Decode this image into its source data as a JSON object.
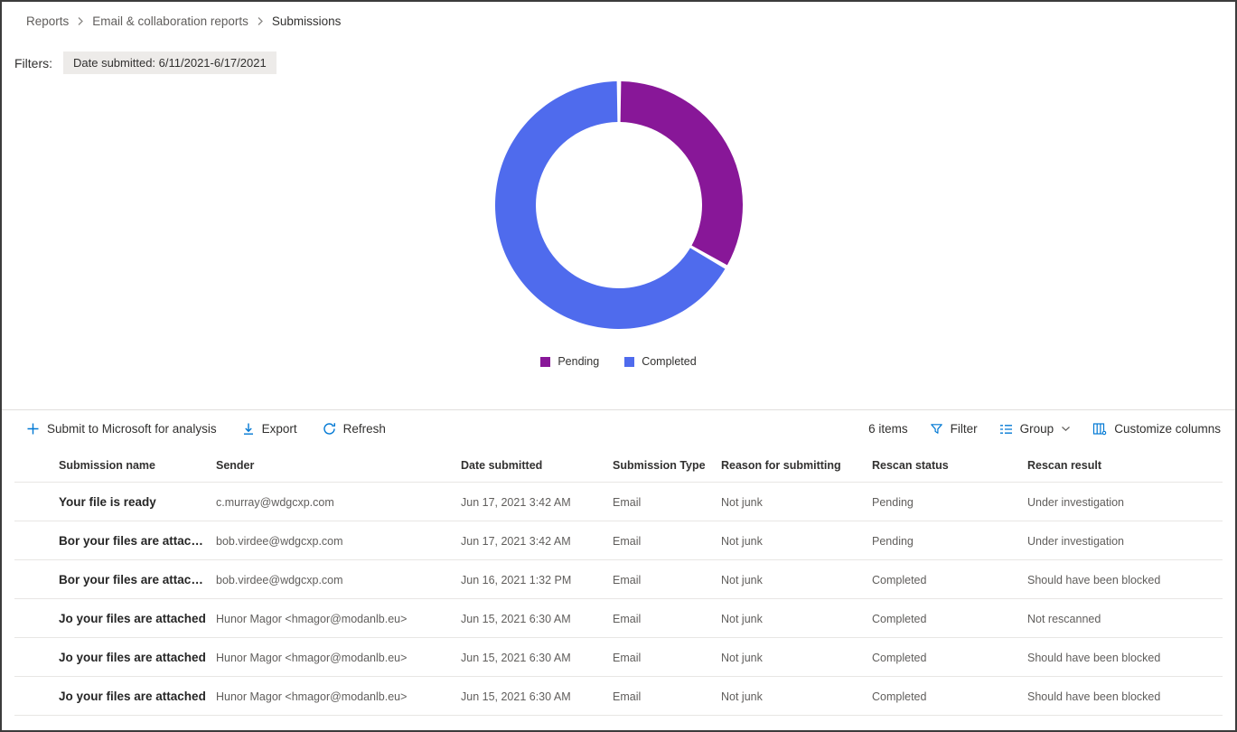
{
  "breadcrumb": {
    "items": [
      {
        "label": "Reports"
      },
      {
        "label": "Email & collaboration reports"
      },
      {
        "label": "Submissions"
      }
    ]
  },
  "filters": {
    "label": "Filters:",
    "chip": "Date submitted: 6/11/2021-6/17/2021"
  },
  "chart_data": {
    "type": "pie",
    "donut": true,
    "title": "",
    "labels": [
      "Pending",
      "Completed"
    ],
    "values": [
      2,
      4
    ],
    "colors": [
      "#881798",
      "#4F6BED"
    ],
    "legend_position": "bottom"
  },
  "toolbar": {
    "submit_label": "Submit to Microsoft for analysis",
    "export_label": "Export",
    "refresh_label": "Refresh",
    "items_count": "6 items",
    "filter_label": "Filter",
    "group_label": "Group",
    "customize_label": "Customize columns"
  },
  "table": {
    "columns": [
      "Submission name",
      "Sender",
      "Date submitted",
      "Submission Type",
      "Reason for submitting",
      "Rescan status",
      "Rescan result"
    ],
    "rows": [
      [
        "Your file is ready",
        "c.murray@wdgcxp.com",
        "Jun 17, 2021 3:42 AM",
        "Email",
        "Not junk",
        "Pending",
        "Under investigation"
      ],
      [
        "Bor your files are attached",
        "bob.virdee@wdgcxp.com",
        "Jun 17, 2021 3:42 AM",
        "Email",
        "Not junk",
        "Pending",
        "Under investigation"
      ],
      [
        "Bor your files are attached",
        "bob.virdee@wdgcxp.com",
        "Jun 16, 2021 1:32 PM",
        "Email",
        "Not junk",
        "Completed",
        "Should have been blocked"
      ],
      [
        "Jo your files are attached",
        "Hunor Magor <hmagor@modanlb.eu>",
        "Jun 15, 2021 6:30 AM",
        "Email",
        "Not junk",
        "Completed",
        "Not rescanned"
      ],
      [
        "Jo your files are attached",
        "Hunor Magor <hmagor@modanlb.eu>",
        "Jun 15, 2021 6:30 AM",
        "Email",
        "Not junk",
        "Completed",
        "Should have been blocked"
      ],
      [
        "Jo your files are attached",
        "Hunor Magor <hmagor@modanlb.eu>",
        "Jun 15, 2021 6:30 AM",
        "Email",
        "Not junk",
        "Completed",
        "Should have been blocked"
      ]
    ]
  },
  "colors": {
    "accent": "#0078d4",
    "pending": "#881798",
    "completed": "#4F6BED"
  }
}
